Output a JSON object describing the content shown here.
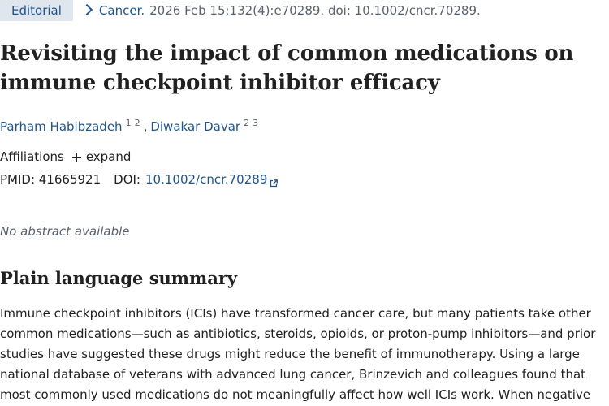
{
  "citation": {
    "publication_type": "Editorial",
    "journal": "Cancer.",
    "details": "2026 Feb 15;132(4):e70289. doi: 10.1002/cncr.70289."
  },
  "article": {
    "title": "Revisiting the impact of common medications on immune checkpoint inhibitor efficacy"
  },
  "authors": [
    {
      "name": "Parham Habibzadeh",
      "affiliations": [
        "1",
        "2"
      ]
    },
    {
      "name": "Diwakar Davar",
      "affiliations": [
        "2",
        "3"
      ]
    }
  ],
  "affiliations": {
    "label": "Affiliations",
    "expand_label": "expand"
  },
  "identifiers": {
    "pmid_label": "PMID:",
    "pmid": "41665921",
    "doi_label": "DOI:",
    "doi": "10.1002/cncr.70289"
  },
  "abstract": {
    "note": "No abstract available"
  },
  "summary": {
    "heading": "Plain language summary",
    "text": "Immune checkpoint inhibitors (ICIs) have transformed cancer care, but many patients take other common medications—such as antibiotics, steroids, opioids, or proton-pump inhibitors—and prior studies have suggested these drugs might reduce the benefit of immunotherapy. Using a large national database of veterans with advanced lung cancer, Brinzevich and colleagues found that most commonly used medications do not meaningfully affect how well ICIs work. When negative effects"
  },
  "colors": {
    "link": "#20558a",
    "badge_bg": "#dfe6ee",
    "text": "#212121",
    "muted": "#5b616b"
  },
  "icons": {
    "breadcrumb": "chevron-right-icon",
    "expand": "plus-icon",
    "external": "external-link-icon"
  }
}
